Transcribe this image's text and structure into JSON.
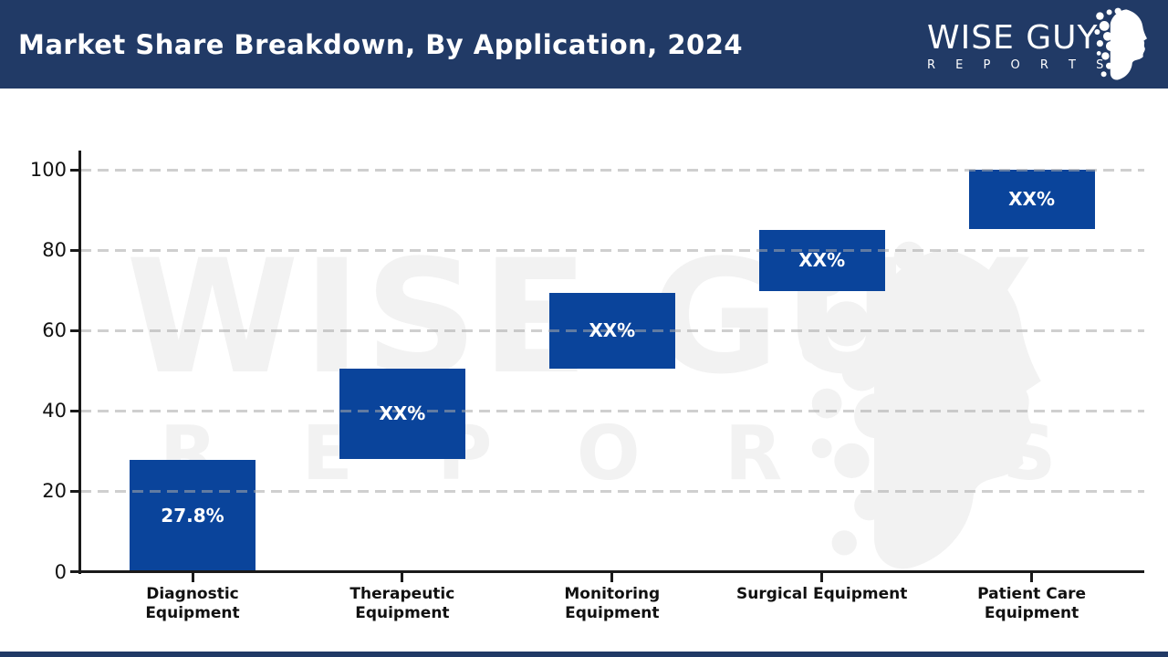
{
  "header": {
    "title": "Market Share Breakdown, By Application, 2024",
    "logo": {
      "line1": "WISE GUY",
      "line2": "R E P O R T S"
    }
  },
  "watermark": {
    "line1": "WISE GUY",
    "line2": "R E P O R T S"
  },
  "colors": {
    "header_bg": "#213a66",
    "bar_blue": "#0a449b",
    "bar_label": "#ffffff",
    "gridline": "#a8a8a8",
    "axis": "#1a1a1a",
    "watermark": "#f2f2f2"
  },
  "chart_data": {
    "type": "bar",
    "subtype": "waterfall-floating-segments",
    "title": "Market Share Breakdown, By Application, 2024",
    "xlabel": "",
    "ylabel": "",
    "ylim": [
      0,
      105
    ],
    "yticks": [
      0,
      20,
      40,
      60,
      80,
      100
    ],
    "grid": "horizontal-dashed",
    "legend": null,
    "categories": [
      "Diagnostic Equipment",
      "Therapeutic Equipment",
      "Monitoring Equipment",
      "Surgical Equipment",
      "Patient Care Equipment"
    ],
    "segments": [
      {
        "category": "Diagnostic Equipment",
        "label_lines": [
          "Diagnostic",
          "Equipment"
        ],
        "value_label": "27.8%",
        "start": 0,
        "end": 27.8
      },
      {
        "category": "Therapeutic Equipment",
        "label_lines": [
          "Therapeutic",
          "Equipment"
        ],
        "value_label": "XX%",
        "start": 28.1,
        "end": 50.5
      },
      {
        "category": "Monitoring Equipment",
        "label_lines": [
          "Monitoring",
          "Equipment"
        ],
        "value_label": "XX%",
        "start": 50.6,
        "end": 69.3
      },
      {
        "category": "Surgical Equipment",
        "label_lines": [
          "Surgical Equipment"
        ],
        "value_label": "XX%",
        "start": 69.9,
        "end": 85.0
      },
      {
        "category": "Patient Care Equipment",
        "label_lines": [
          "Patient Care",
          "Equipment"
        ],
        "value_label": "XX%",
        "start": 85.3,
        "end": 100
      }
    ]
  }
}
